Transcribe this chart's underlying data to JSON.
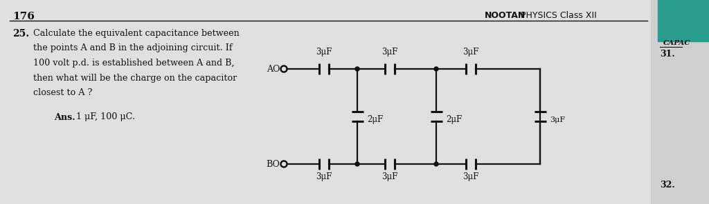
{
  "page_number": "176",
  "header_bold": "NOOTAN",
  "header_rest": " PHYSICS Class XII",
  "question_number": "25.",
  "q_line1": "Calculate the equivalent capacitance between",
  "q_line2": "the points A and B in the adjoining circuit. If",
  "q_line3": "100 volt p.d. is established between A and B,",
  "q_line4": "then what will be the charge on the capacitor",
  "q_line5": "closest to A ?",
  "ans_bold": "Ans.",
  "ans_rest": " 1 μF, 100 μC.",
  "right_label": "CAPAC",
  "right_num": "31.",
  "bottom_num": "32.",
  "teal_color": "#2a9d8f",
  "bg_color": "#d8d8d8",
  "page_bg": "#e8e8e8",
  "text_color": "#1a1a1a",
  "lc": "#111111",
  "node_A": "AO",
  "node_B": "BO",
  "cap3_top": "3μF",
  "cap2_mid": "2μF",
  "cap3_bot": "3μF",
  "cap3_right": "3μF"
}
